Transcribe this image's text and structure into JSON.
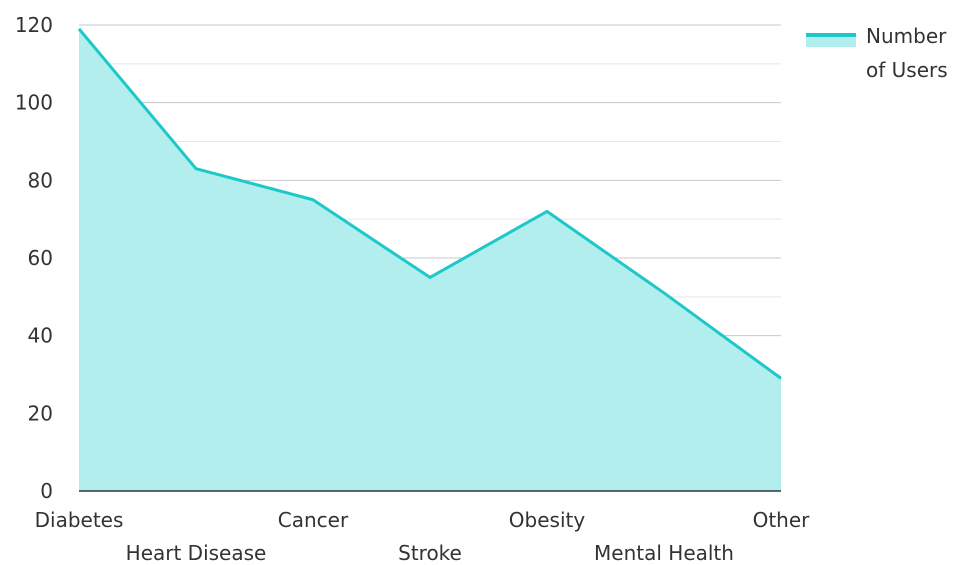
{
  "chart_data": {
    "type": "area",
    "categories": [
      "Diabetes",
      "Heart Disease",
      "Cancer",
      "Stroke",
      "Obesity",
      "Mental Health",
      "Other"
    ],
    "series": [
      {
        "name": "Number of Users",
        "values": [
          119,
          83,
          75,
          55,
          72,
          51,
          29
        ]
      }
    ],
    "title": "",
    "xlabel": "",
    "ylabel": "",
    "ylim": [
      0,
      120
    ],
    "yticks": [
      0,
      20,
      40,
      60,
      80,
      100,
      120
    ],
    "grid": true,
    "legend_position": "top-right",
    "legend_lines": [
      "Number",
      "of Users"
    ],
    "colors": {
      "line": "#1ec8c8",
      "fill": "#b2eeee",
      "grid_major": "#c8c8c8",
      "grid_minor": "#e6e6e6",
      "axis": "#333333"
    }
  }
}
